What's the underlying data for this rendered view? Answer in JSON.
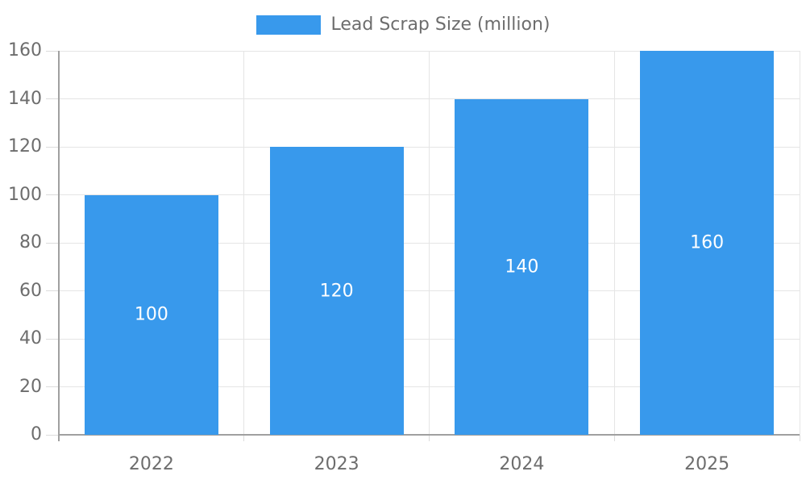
{
  "chart_data": {
    "type": "bar",
    "title": "Lead Scrap Size (million)",
    "series_name": "Lead Scrap Size (million)",
    "categories": [
      "2022",
      "2023",
      "2024",
      "2025"
    ],
    "values": [
      100,
      120,
      140,
      160
    ],
    "bar_value_labels": [
      "100",
      "120",
      "140",
      "160"
    ],
    "xlabel": "",
    "ylabel": "",
    "ylim": [
      0,
      160
    ],
    "ytick_step": 20,
    "ytick_labels": [
      "0",
      "20",
      "40",
      "60",
      "80",
      "100",
      "120",
      "140",
      "160"
    ],
    "grid": true,
    "legend_position": "top",
    "colors": {
      "bar": "#3899ec",
      "bar_value_text": "#ffffff",
      "axis_text": "#6d6d6d",
      "legend_text": "#6d6d6d",
      "gridline": "#e5e5e5",
      "tick_mark": "#dcdcdc",
      "axis_line": "#a0a0a0",
      "background": "#ffffff"
    }
  }
}
